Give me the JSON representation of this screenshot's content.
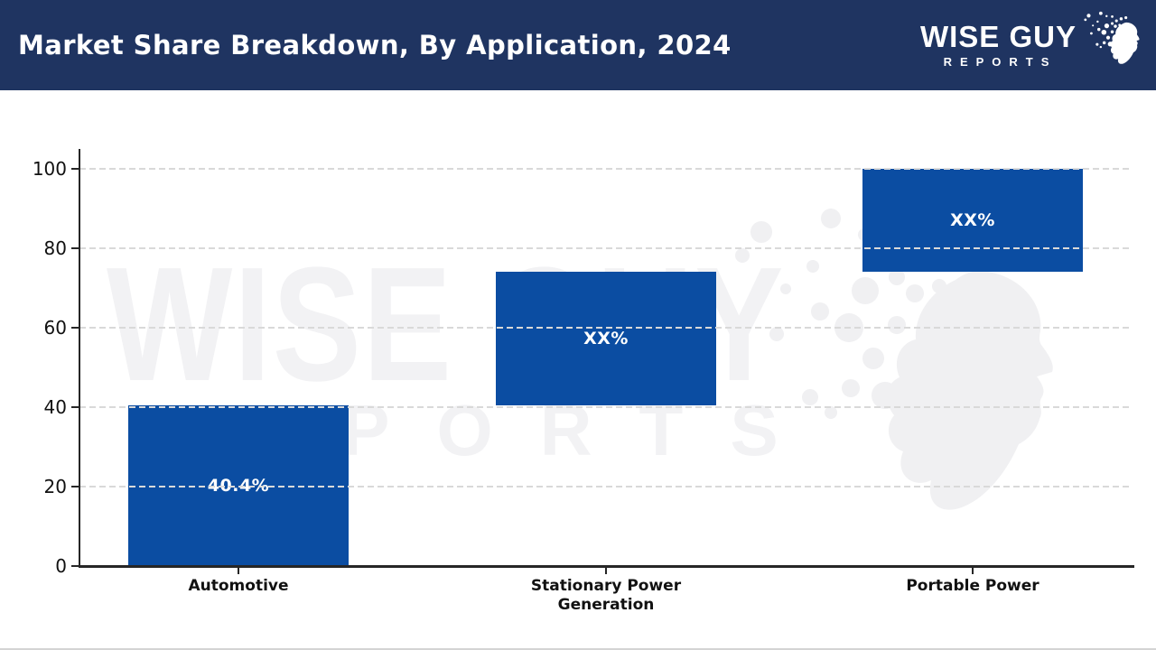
{
  "header": {
    "title": "Market Share Breakdown, By Application, 2024",
    "logo": {
      "line1": "WISE GUY",
      "line2": "REPORTS"
    }
  },
  "watermark": {
    "line1": "WISE GUY",
    "line2": "REPORTS"
  },
  "chart_data": {
    "type": "bar",
    "subtype": "waterfall",
    "title": "Market Share Breakdown, By Application, 2024",
    "categories": [
      "Automotive",
      "Stationary Power\nGeneration",
      "Portable Power"
    ],
    "bars": [
      {
        "category": "Automotive",
        "label": "40.4%",
        "start": 0,
        "end": 40.4,
        "value": 40.4
      },
      {
        "category": "Stationary Power Generation",
        "label": "XX%",
        "start": 40.4,
        "end": 74.2,
        "value": null
      },
      {
        "category": "Portable Power",
        "label": "XX%",
        "start": 74.2,
        "end": 100,
        "value": null
      }
    ],
    "yticks": [
      0,
      20,
      40,
      60,
      80,
      100
    ],
    "ylim": [
      0,
      105
    ],
    "xlabel": "",
    "ylabel": "",
    "grid": "dashed-horizontal",
    "legend": "none",
    "bar_color": "#0b4da2",
    "bar_label_color": "#ffffff"
  },
  "colors": {
    "header_bg": "#1f3461",
    "bar": "#0b4da2",
    "gridline": "#d9d9d9",
    "axis": "#262626",
    "watermark": "#f2f2f4"
  }
}
